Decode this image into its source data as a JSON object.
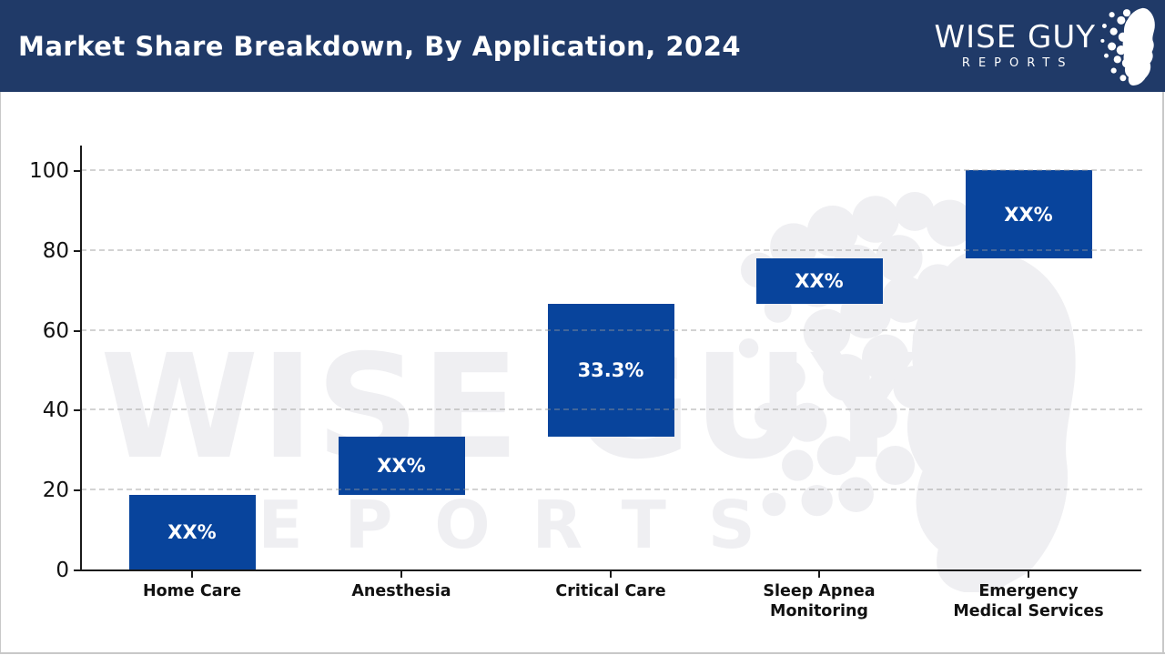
{
  "header": {
    "title": "Market Share Breakdown, By Application, 2024",
    "bg_color": "#203a68",
    "logo": {
      "wordmark": "WISE GUY",
      "subtext": "REPORTS"
    }
  },
  "watermark": {
    "line1": "WISE GUY",
    "line2": "REPORTS"
  },
  "chart_data": {
    "type": "bar",
    "subtype": "floating-waterfall",
    "title": "Market Share Breakdown, By Application, 2024",
    "categories": [
      "Home Care",
      "Anesthesia",
      "Critical Care",
      "Sleep Apnea Monitoring",
      "Emergency Medical Services"
    ],
    "series": [
      {
        "name": "Market share (%)",
        "segments": [
          {
            "category": "Home Care",
            "start": 0,
            "end": 18.6,
            "label": "XX%"
          },
          {
            "category": "Anesthesia",
            "start": 18.6,
            "end": 33.3,
            "label": "XX%"
          },
          {
            "category": "Critical Care",
            "start": 33.3,
            "end": 66.6,
            "label": "33.3%"
          },
          {
            "category": "Sleep Apnea Monitoring",
            "start": 66.6,
            "end": 77.8,
            "label": "XX%"
          },
          {
            "category": "Emergency Medical Services",
            "start": 77.8,
            "end": 100,
            "label": "XX%"
          }
        ]
      }
    ],
    "yticks": [
      0,
      20,
      40,
      60,
      80,
      100
    ],
    "ylim": [
      0,
      106
    ],
    "xlabel": "",
    "ylabel": "",
    "grid": "horizontal-dashed",
    "legend": "none",
    "bar_color": "#08449c",
    "bar_label_color": "#ffffff",
    "axis_color": "#1a1a1a",
    "watermark_color": "#efeff2"
  }
}
